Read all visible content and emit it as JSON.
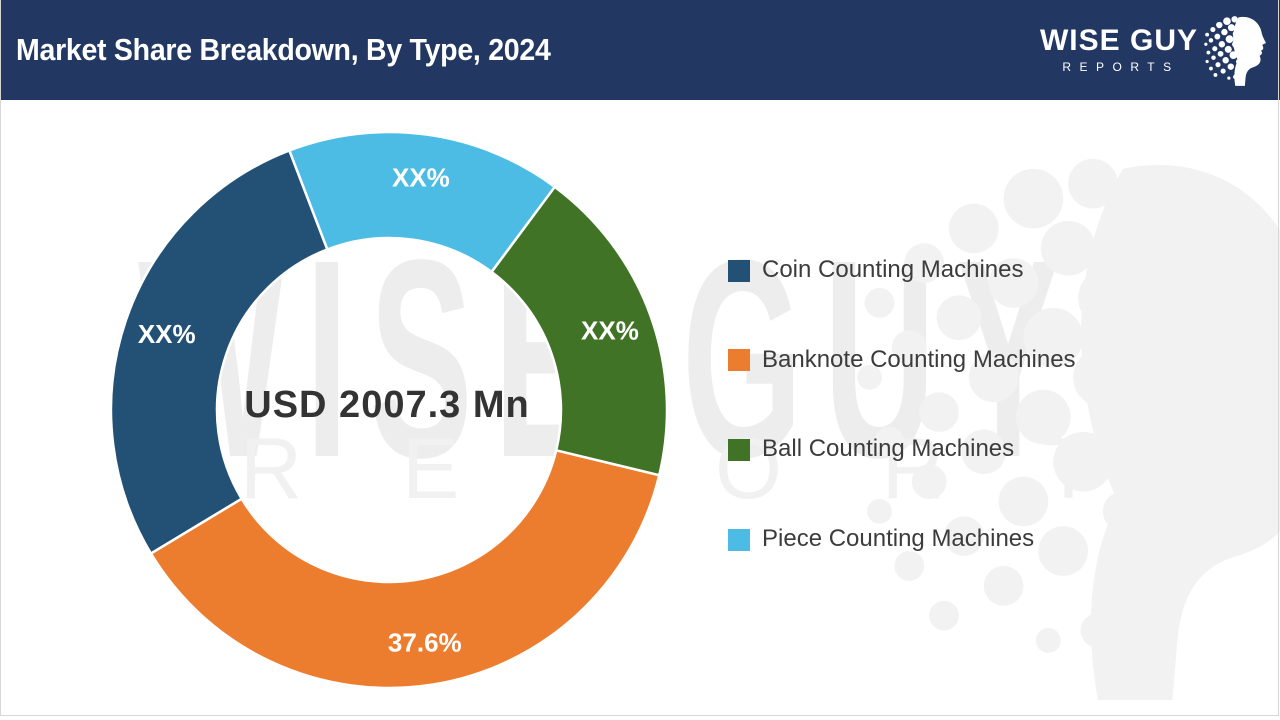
{
  "header": {
    "title": "Market Share Breakdown, By Type, 2024",
    "logo": {
      "line1": "WISE GUY",
      "line2": "REPORTS",
      "icon": "wiseguy-face-icon"
    }
  },
  "watermark": {
    "line1": "WISE GUY",
    "line2": "R E P O R T S",
    "icon": "wiseguy-face-icon"
  },
  "colors": {
    "header_bg": "#223863",
    "title_text": "#ffffff",
    "center_text": "#333333",
    "legend_text": "#3c3c3c",
    "watermark": "#ededed",
    "page_border": "#d6d6d6"
  },
  "chart_data": {
    "type": "pie",
    "subtype": "donut",
    "title": "Market Share Breakdown, By Type, 2024",
    "center_label": "USD 2007.3 Mn",
    "start_angle_deg": 111,
    "direction": "counterclockwise",
    "legend_position": "right",
    "segments": [
      {
        "name": "Coin Counting Machines",
        "slug": "coin",
        "label": "XX%",
        "value_pct": 27.8,
        "color": "#235175"
      },
      {
        "name": "Banknote Counting Machines",
        "slug": "banknote",
        "label": "37.6%",
        "value_pct": 37.6,
        "color": "#ED7D2E"
      },
      {
        "name": "Ball Counting Machines",
        "slug": "ball",
        "label": "XX%",
        "value_pct": 18.6,
        "color": "#417326"
      },
      {
        "name": "Piece Counting Machines",
        "slug": "piece",
        "label": "XX%",
        "value_pct": 16.0,
        "color": "#4DBCE5"
      }
    ]
  }
}
